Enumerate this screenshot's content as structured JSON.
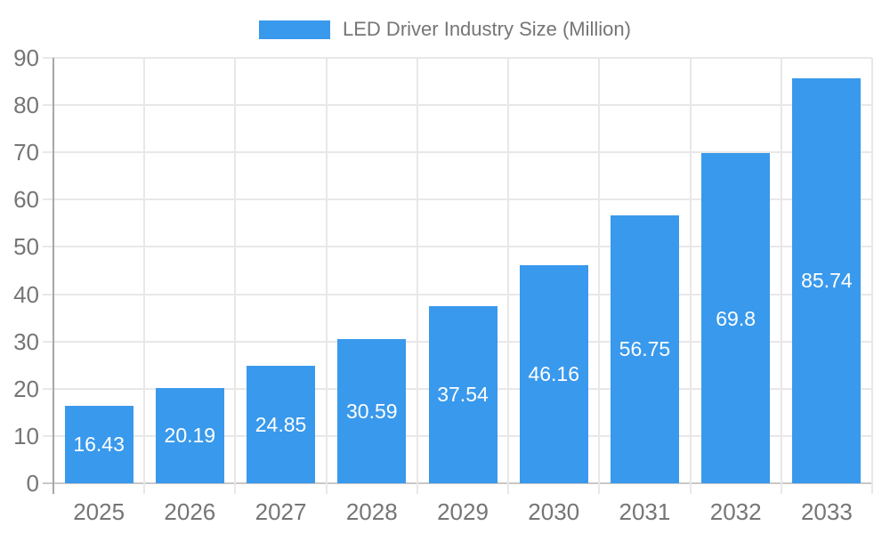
{
  "chart": {
    "legend_label": "LED Driver Industry Size (Million)"
  },
  "chart_data": {
    "type": "bar",
    "title": "LED Driver Industry Size (Million)",
    "categories": [
      "2025",
      "2026",
      "2027",
      "2028",
      "2029",
      "2030",
      "2031",
      "2032",
      "2033"
    ],
    "values": [
      16.43,
      20.19,
      24.85,
      30.59,
      37.54,
      46.16,
      56.75,
      69.8,
      85.74
    ],
    "series_name": "LED Driver Industry Size (Million)",
    "xlabel": "",
    "ylabel": "",
    "ylim": [
      0,
      90
    ],
    "ytick_step": 10,
    "yticks": [
      0,
      10,
      20,
      30,
      40,
      50,
      60,
      70,
      80,
      90
    ],
    "grid": true,
    "legend_position": "top-center",
    "value_labels_inside_bars": true
  },
  "colors": {
    "bar": "#3999EC",
    "bar_value_label": "#FFFFFF",
    "axis_text": "#757575",
    "title_text": "#757575"
  }
}
